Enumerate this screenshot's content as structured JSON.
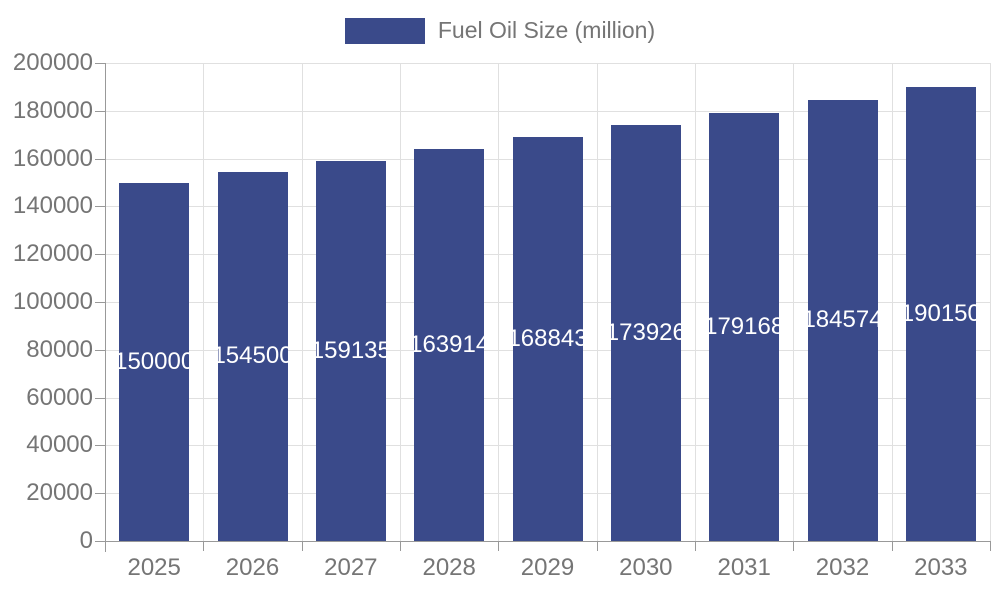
{
  "legend": {
    "label": "Fuel Oil Size (million)"
  },
  "chart_data": {
    "type": "bar",
    "title": "Fuel Oil Size (million)",
    "series_name": "Fuel Oil Size (million)",
    "categories": [
      "2025",
      "2026",
      "2027",
      "2028",
      "2029",
      "2030",
      "2031",
      "2032",
      "2033"
    ],
    "values": [
      150000,
      154500,
      159135,
      163914,
      168843,
      173926,
      179168,
      184574,
      190150
    ],
    "bar_labels": [
      "150000",
      "154500",
      "159135",
      "163914",
      "168843",
      "173926",
      "179168",
      "184574",
      "190150"
    ],
    "xlabel": "",
    "ylabel": "",
    "ylim": [
      0,
      200000
    ],
    "ytick_interval": 20000,
    "yticks": [
      0,
      20000,
      40000,
      60000,
      80000,
      100000,
      120000,
      140000,
      160000,
      180000,
      200000
    ],
    "grid": true,
    "legend_position": "top-center",
    "bar_color": "#3A4A8A",
    "bar_label_color": "#FFFFFF",
    "axis_text_color": "#757575",
    "gridline_color": "#E0E0E0",
    "axis_line_color": "#999999"
  }
}
